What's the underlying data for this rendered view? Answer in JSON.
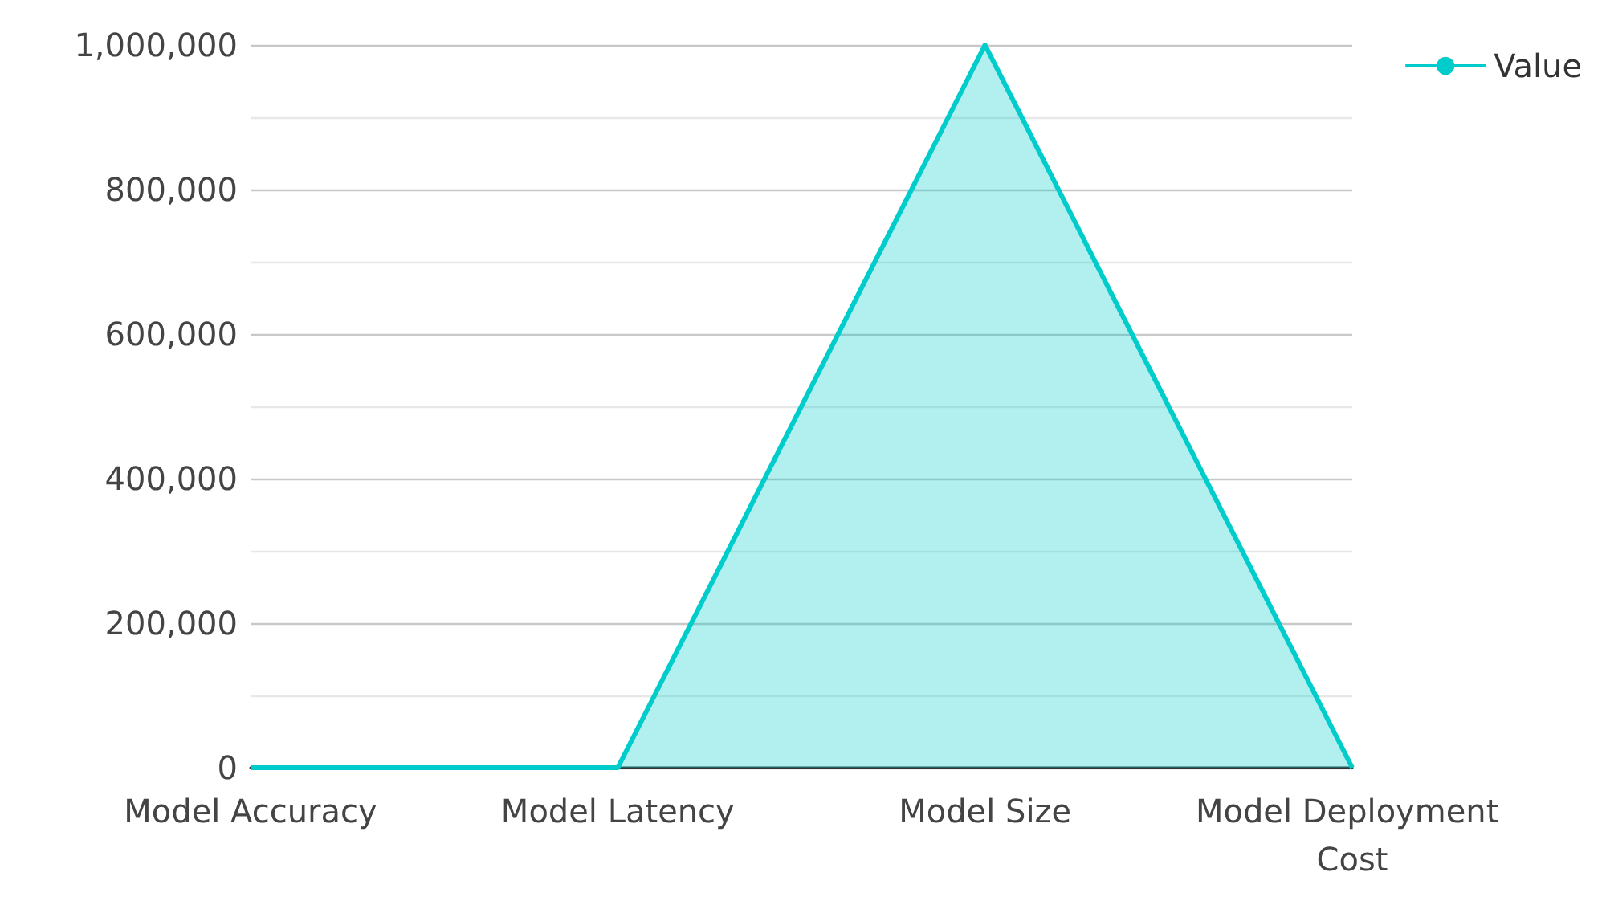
{
  "chart_data": {
    "type": "area",
    "categories": [
      "Model Accuracy",
      "Model Latency",
      "Model Size",
      "Model Deployment Cost"
    ],
    "series": [
      {
        "name": "Value",
        "color": "#00cccc",
        "values": [
          0,
          0,
          1000000,
          0
        ]
      }
    ],
    "ylim": [
      0,
      1000000
    ],
    "yticks": [
      {
        "value": 0,
        "label": "0"
      },
      {
        "value": 100000,
        "label": null
      },
      {
        "value": 200000,
        "label": "200,000"
      },
      {
        "value": 300000,
        "label": null
      },
      {
        "value": 400000,
        "label": "400,000"
      },
      {
        "value": 500000,
        "label": null
      },
      {
        "value": 600000,
        "label": "600,000"
      },
      {
        "value": 700000,
        "label": null
      },
      {
        "value": 800000,
        "label": "800,000"
      },
      {
        "value": 900000,
        "label": null
      },
      {
        "value": 1000000,
        "label": "1,000,000"
      }
    ],
    "grid": true,
    "legend": "top right",
    "marker": "none"
  }
}
